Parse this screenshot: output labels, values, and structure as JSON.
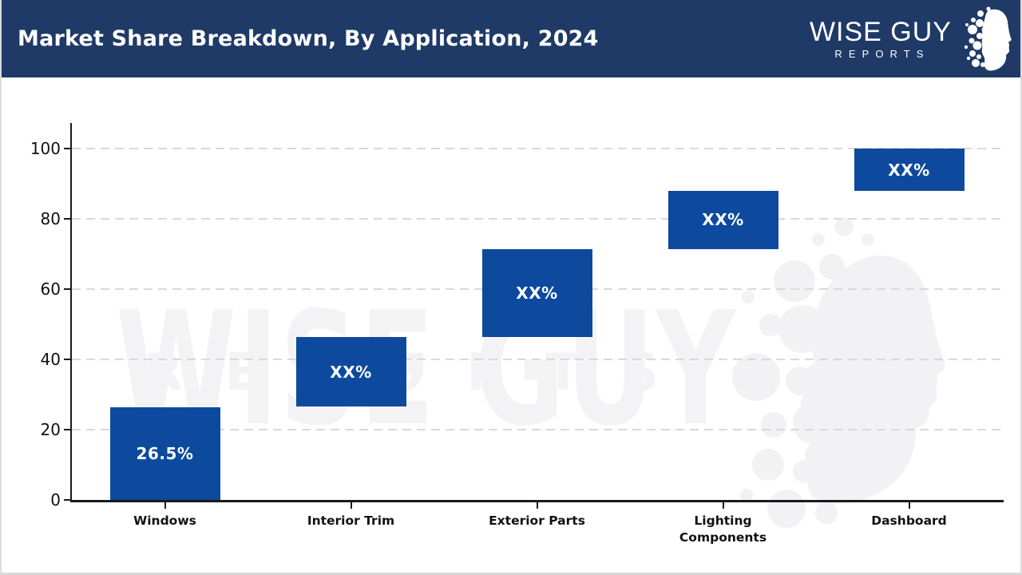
{
  "header": {
    "title": "Market Share Breakdown, By Application, 2024",
    "logo": {
      "line1": "WISE GUY",
      "line2": "REPORTS"
    }
  },
  "watermark": {
    "line1": "WISE GUY",
    "line2": "REPORTS"
  },
  "colors": {
    "header_bg": "#1f3a66",
    "bar": "#0d4a9e",
    "bar_label": "#ffffff",
    "axis": "#1a1a1a",
    "grid": "#d9d9d9",
    "watermark": "#f3f3f5",
    "logo_white": "#ffffff"
  },
  "chart_data": {
    "type": "bar",
    "subtype": "waterfall",
    "title": "Market Share Breakdown, By Application, 2024",
    "xlabel": "",
    "ylabel": "",
    "categories": [
      "Windows",
      "Interior Trim",
      "Exterior Parts",
      "Lighting Components",
      "Dashboard"
    ],
    "segments": [
      {
        "category": "Windows",
        "start": 0,
        "end": 26.5,
        "label": "26.5%"
      },
      {
        "category": "Interior Trim",
        "start": 26.5,
        "end": 46.5,
        "label": "XX%"
      },
      {
        "category": "Exterior Parts",
        "start": 46.5,
        "end": 71.5,
        "label": "XX%"
      },
      {
        "category": "Lighting Components",
        "start": 71.5,
        "end": 88,
        "label": "XX%"
      },
      {
        "category": "Dashboard",
        "start": 88,
        "end": 100,
        "label": "XX%"
      }
    ],
    "yticks": [
      0,
      20,
      40,
      60,
      80,
      100
    ],
    "ylim": [
      0,
      106
    ],
    "grid": "horizontal-dashed",
    "legend": "none"
  }
}
